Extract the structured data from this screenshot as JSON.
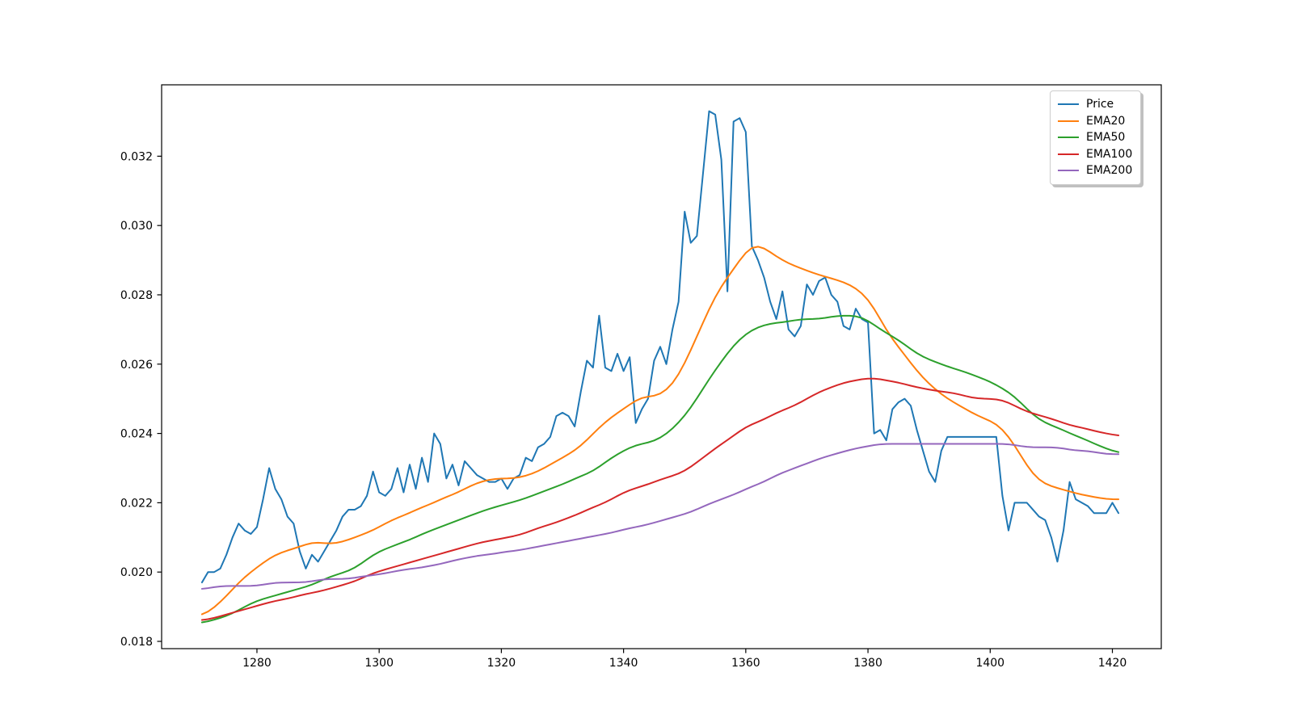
{
  "figure": {
    "background_color": "#ffffff",
    "plot_border_color": "#000000",
    "tick_color": "#000000",
    "grid": "off",
    "title": "",
    "xlabel": "",
    "ylabel": ""
  },
  "legend": {
    "position": "upper-right",
    "entries": [
      {
        "label": "Price",
        "color": "#1f77b4"
      },
      {
        "label": "EMA20",
        "color": "#ff7f0e"
      },
      {
        "label": "EMA50",
        "color": "#2ca02c"
      },
      {
        "label": "EMA100",
        "color": "#d62728"
      },
      {
        "label": "EMA200",
        "color": "#9467bd"
      }
    ]
  },
  "chart_data": {
    "type": "line",
    "title": "",
    "xlabel": "",
    "ylabel": "",
    "x_range": [
      1264.4,
      1428.0
    ],
    "y_range": [
      0.01779,
      0.03406
    ],
    "x_ticks": [
      {
        "value": 1280,
        "label": "1280"
      },
      {
        "value": 1300,
        "label": "1300"
      },
      {
        "value": 1320,
        "label": "1320"
      },
      {
        "value": 1340,
        "label": "1340"
      },
      {
        "value": 1360,
        "label": "1360"
      },
      {
        "value": 1380,
        "label": "1380"
      },
      {
        "value": 1400,
        "label": "1400"
      },
      {
        "value": 1420,
        "label": "1420"
      }
    ],
    "y_ticks": [
      {
        "value": 0.018,
        "label": "0.018"
      },
      {
        "value": 0.02,
        "label": "0.020"
      },
      {
        "value": 0.022,
        "label": "0.022"
      },
      {
        "value": 0.024,
        "label": "0.024"
      },
      {
        "value": 0.026,
        "label": "0.026"
      },
      {
        "value": 0.028,
        "label": "0.028"
      },
      {
        "value": 0.03,
        "label": "0.030"
      },
      {
        "value": 0.032,
        "label": "0.032"
      }
    ],
    "x_start": 1271,
    "x_end": 1421,
    "x_step": 1,
    "series": [
      {
        "name": "Price",
        "color": "#1f77b4",
        "smooth": false,
        "values": [
          0.0197,
          0.02,
          0.02,
          0.0201,
          0.0205,
          0.021,
          0.0214,
          0.0212,
          0.0211,
          0.0213,
          0.0221,
          0.023,
          0.0224,
          0.0221,
          0.0216,
          0.0214,
          0.0206,
          0.0201,
          0.0205,
          0.0203,
          0.0206,
          0.0209,
          0.0212,
          0.0216,
          0.0218,
          0.0218,
          0.0219,
          0.0222,
          0.0229,
          0.0223,
          0.0222,
          0.0224,
          0.023,
          0.0223,
          0.0231,
          0.0224,
          0.0233,
          0.0226,
          0.024,
          0.0237,
          0.0227,
          0.0231,
          0.0225,
          0.0232,
          0.023,
          0.0228,
          0.0227,
          0.0226,
          0.0226,
          0.0227,
          0.0224,
          0.0227,
          0.0228,
          0.0233,
          0.0232,
          0.0236,
          0.0237,
          0.0239,
          0.0245,
          0.0246,
          0.0245,
          0.0242,
          0.0252,
          0.0261,
          0.0259,
          0.0274,
          0.0259,
          0.0258,
          0.0263,
          0.0258,
          0.0262,
          0.0243,
          0.0247,
          0.025,
          0.0261,
          0.0265,
          0.026,
          0.027,
          0.0278,
          0.0304,
          0.0295,
          0.0297,
          0.0315,
          0.0333,
          0.0332,
          0.0319,
          0.0281,
          0.033,
          0.0331,
          0.0327,
          0.0294,
          0.029,
          0.0285,
          0.0278,
          0.0273,
          0.0281,
          0.027,
          0.0268,
          0.0271,
          0.0283,
          0.028,
          0.0284,
          0.0285,
          0.028,
          0.0278,
          0.0271,
          0.027,
          0.0276,
          0.0273,
          0.0272,
          0.024,
          0.0241,
          0.0238,
          0.0247,
          0.0249,
          0.025,
          0.0248,
          0.0241,
          0.0235,
          0.0229,
          0.0226,
          0.0235,
          0.0239,
          0.0239,
          0.0239,
          0.0239,
          0.0239,
          0.0239,
          0.0239,
          0.0239,
          0.0239,
          0.0222,
          0.0212,
          0.022,
          0.022,
          0.022,
          0.0218,
          0.0216,
          0.0215,
          0.021,
          0.0203,
          0.0212,
          0.0226,
          0.0221,
          0.022,
          0.0219,
          0.0217,
          0.0217,
          0.0217,
          0.022,
          0.0217
        ]
      },
      {
        "name": "EMA20",
        "color": "#ff7f0e",
        "smooth": true,
        "values": [
          0.0187,
          0.0188,
          0.019,
          0.0191,
          0.0193,
          0.0195,
          0.0197,
          0.0199,
          0.02,
          0.0201,
          0.0203,
          0.0204,
          0.0205,
          0.0206,
          0.0206,
          0.0207,
          0.0207,
          0.0208,
          0.0209,
          0.0209,
          0.0208,
          0.0208,
          0.0208,
          0.0209,
          0.0209,
          0.021,
          0.0211,
          0.0211,
          0.0212,
          0.0213,
          0.0214,
          0.0215,
          0.0216,
          0.0216,
          0.0217,
          0.0218,
          0.0219,
          0.0219,
          0.022,
          0.0221,
          0.0222,
          0.0222,
          0.0223,
          0.0224,
          0.0225,
          0.0226,
          0.0226,
          0.0227,
          0.0227,
          0.0227,
          0.0227,
          0.0227,
          0.0227,
          0.0228,
          0.0228,
          0.0229,
          0.023,
          0.0231,
          0.0232,
          0.0233,
          0.0234,
          0.0235,
          0.0236,
          0.0238,
          0.024,
          0.0242,
          0.0243,
          0.0245,
          0.0246,
          0.0247,
          0.0248,
          0.025,
          0.0251,
          0.0251,
          0.025,
          0.0251,
          0.0252,
          0.0254,
          0.0256,
          0.026,
          0.0264,
          0.0268,
          0.0272,
          0.0276,
          0.028,
          0.0283,
          0.0285,
          0.0287,
          0.029,
          0.0293,
          0.0295,
          0.0295,
          0.0294,
          0.0292,
          0.0291,
          0.029,
          0.0289,
          0.0288,
          0.0288,
          0.0287,
          0.0286,
          0.0286,
          0.0285,
          0.0285,
          0.0284,
          0.0284,
          0.0283,
          0.0282,
          0.0281,
          0.0279,
          0.0277,
          0.0273,
          0.0269,
          0.0267,
          0.0265,
          0.0263,
          0.026,
          0.0258,
          0.0256,
          0.0254,
          0.0253,
          0.0251,
          0.025,
          0.0249,
          0.0248,
          0.0247,
          0.0246,
          0.0245,
          0.0244,
          0.0244,
          0.0243,
          0.0242,
          0.0239,
          0.0237,
          0.0234,
          0.023,
          0.0228,
          0.0226,
          0.0225,
          0.0225,
          0.0224,
          0.0224,
          0.0223,
          0.0223,
          0.0222,
          0.0222,
          0.0222,
          0.0221,
          0.0221,
          0.0221,
          0.0221
        ]
      },
      {
        "name": "EMA50",
        "color": "#2ca02c",
        "smooth": true,
        "values": [
          0.0185,
          0.0186,
          0.0186,
          0.0187,
          0.0187,
          0.0188,
          0.0189,
          0.019,
          0.0191,
          0.0192,
          0.0192,
          0.0193,
          0.0193,
          0.0194,
          0.0194,
          0.0195,
          0.0195,
          0.0196,
          0.0196,
          0.0197,
          0.0198,
          0.0199,
          0.0199,
          0.02,
          0.02,
          0.0201,
          0.0202,
          0.0204,
          0.0205,
          0.0206,
          0.0207,
          0.0207,
          0.0208,
          0.0209,
          0.0209,
          0.021,
          0.0211,
          0.0212,
          0.0212,
          0.0213,
          0.0214,
          0.0214,
          0.0215,
          0.0216,
          0.0216,
          0.0217,
          0.0218,
          0.0218,
          0.0219,
          0.0219,
          0.022,
          0.022,
          0.0221,
          0.0221,
          0.0222,
          0.0223,
          0.0223,
          0.0224,
          0.0225,
          0.0225,
          0.0226,
          0.0227,
          0.0228,
          0.0228,
          0.0229,
          0.023,
          0.0232,
          0.0233,
          0.0234,
          0.0235,
          0.0236,
          0.0237,
          0.0237,
          0.0237,
          0.0238,
          0.0238,
          0.024,
          0.0241,
          0.0243,
          0.0245,
          0.0247,
          0.025,
          0.0253,
          0.0256,
          0.0258,
          0.0261,
          0.0263,
          0.0266,
          0.0267,
          0.0269,
          0.027,
          0.0271,
          0.0271,
          0.0272,
          0.0272,
          0.0272,
          0.0272,
          0.0273,
          0.0273,
          0.0273,
          0.0273,
          0.0273,
          0.0273,
          0.0274,
          0.0274,
          0.0274,
          0.0274,
          0.0274,
          0.0274,
          0.0273,
          0.0271,
          0.027,
          0.0269,
          0.0268,
          0.0267,
          0.0266,
          0.0264,
          0.0263,
          0.0262,
          0.0261,
          0.0261,
          0.026,
          0.0259,
          0.0259,
          0.0258,
          0.0258,
          0.0257,
          0.0256,
          0.0256,
          0.0255,
          0.0254,
          0.0253,
          0.0252,
          0.0251,
          0.0249,
          0.0247,
          0.0245,
          0.0244,
          0.0243,
          0.0242,
          0.0242,
          0.0241,
          0.024,
          0.0239,
          0.0239,
          0.0238,
          0.0237,
          0.0236,
          0.0236,
          0.0235,
          0.0234
        ]
      },
      {
        "name": "EMA100",
        "color": "#d62728",
        "smooth": true,
        "values": [
          0.0186,
          0.0186,
          0.0187,
          0.0187,
          0.0188,
          0.0188,
          0.0189,
          0.0189,
          0.019,
          0.019,
          0.0191,
          0.0191,
          0.0192,
          0.0192,
          0.0192,
          0.0193,
          0.0193,
          0.0194,
          0.0194,
          0.0194,
          0.0195,
          0.0195,
          0.0196,
          0.0196,
          0.0197,
          0.0197,
          0.0198,
          0.0199,
          0.02,
          0.02,
          0.0201,
          0.0201,
          0.0202,
          0.0202,
          0.0203,
          0.0203,
          0.0204,
          0.0204,
          0.0205,
          0.0205,
          0.0206,
          0.0206,
          0.0207,
          0.0207,
          0.0208,
          0.0208,
          0.0209,
          0.0209,
          0.0209,
          0.021,
          0.021,
          0.021,
          0.0211,
          0.0211,
          0.0212,
          0.0213,
          0.0213,
          0.0214,
          0.0214,
          0.0215,
          0.0216,
          0.0216,
          0.0217,
          0.0218,
          0.0219,
          0.0219,
          0.022,
          0.0221,
          0.0222,
          0.0223,
          0.0224,
          0.0224,
          0.0225,
          0.0225,
          0.0226,
          0.0227,
          0.0227,
          0.0228,
          0.0228,
          0.0229,
          0.023,
          0.0232,
          0.0233,
          0.0234,
          0.0236,
          0.0237,
          0.0238,
          0.0239,
          0.0241,
          0.0242,
          0.0243,
          0.0243,
          0.0244,
          0.0245,
          0.0246,
          0.0247,
          0.0247,
          0.0248,
          0.0249,
          0.025,
          0.0251,
          0.0252,
          0.0253,
          0.0253,
          0.0254,
          0.0255,
          0.0255,
          0.0255,
          0.0256,
          0.0256,
          0.0256,
          0.0256,
          0.0255,
          0.0255,
          0.0255,
          0.0254,
          0.0254,
          0.0253,
          0.0253,
          0.0253,
          0.0252,
          0.0252,
          0.0252,
          0.0252,
          0.0251,
          0.0251,
          0.025,
          0.025,
          0.025,
          0.025,
          0.025,
          0.025,
          0.0249,
          0.0248,
          0.0247,
          0.0246,
          0.0246,
          0.0245,
          0.0245,
          0.0244,
          0.0244,
          0.0243,
          0.0242,
          0.0242,
          0.0242,
          0.0241,
          0.0241,
          0.024,
          0.024,
          0.024,
          0.0239
        ]
      },
      {
        "name": "EMA200",
        "color": "#9467bd",
        "smooth": true,
        "values": [
          0.0195,
          0.0195,
          0.0196,
          0.0196,
          0.0196,
          0.0196,
          0.0196,
          0.0196,
          0.0196,
          0.0196,
          0.0196,
          0.0197,
          0.0197,
          0.0197,
          0.0197,
          0.0197,
          0.0197,
          0.0197,
          0.0197,
          0.0198,
          0.0198,
          0.0198,
          0.0198,
          0.0198,
          0.0198,
          0.0198,
          0.0199,
          0.0199,
          0.0199,
          0.0199,
          0.02,
          0.02,
          0.02,
          0.0201,
          0.0201,
          0.0201,
          0.0201,
          0.0202,
          0.0202,
          0.0202,
          0.0203,
          0.0203,
          0.0204,
          0.0204,
          0.0204,
          0.0205,
          0.0205,
          0.0205,
          0.0205,
          0.0206,
          0.0206,
          0.0206,
          0.0206,
          0.0207,
          0.0207,
          0.0207,
          0.0208,
          0.0208,
          0.0208,
          0.0209,
          0.0209,
          0.0209,
          0.021,
          0.021,
          0.021,
          0.0211,
          0.0211,
          0.0211,
          0.0212,
          0.0212,
          0.0213,
          0.0213,
          0.0213,
          0.0214,
          0.0214,
          0.0215,
          0.0215,
          0.0216,
          0.0216,
          0.0217,
          0.0217,
          0.0218,
          0.0219,
          0.022,
          0.022,
          0.0221,
          0.0222,
          0.0222,
          0.0223,
          0.0224,
          0.0225,
          0.0225,
          0.0226,
          0.0227,
          0.0228,
          0.0229,
          0.0229,
          0.023,
          0.0231,
          0.0231,
          0.0232,
          0.0233,
          0.0233,
          0.0234,
          0.0234,
          0.0235,
          0.0235,
          0.0236,
          0.0236,
          0.0236,
          0.0237,
          0.0237,
          0.0237,
          0.0237,
          0.0237,
          0.0237,
          0.0237,
          0.0237,
          0.0237,
          0.0237,
          0.0237,
          0.0237,
          0.0237,
          0.0237,
          0.0237,
          0.0237,
          0.0237,
          0.0237,
          0.0237,
          0.0237,
          0.0237,
          0.0237,
          0.0237,
          0.0237,
          0.0236,
          0.0236,
          0.0236,
          0.0236,
          0.0236,
          0.0236,
          0.0236,
          0.0236,
          0.0235,
          0.0235,
          0.0235,
          0.0235,
          0.0235,
          0.0234,
          0.0234,
          0.0234,
          0.0234
        ]
      }
    ]
  }
}
